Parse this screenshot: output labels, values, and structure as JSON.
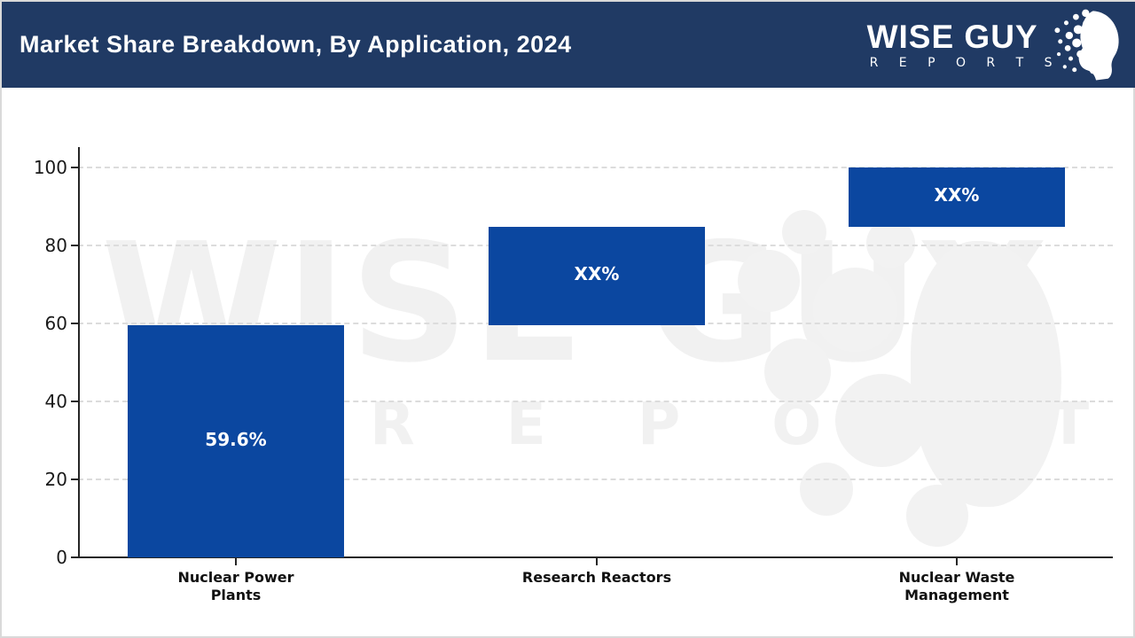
{
  "header": {
    "title": "Market Share Breakdown, By Application, 2024",
    "logo": {
      "line1": "WISE GUY",
      "line2": "R E P O R T S"
    }
  },
  "watermark": {
    "line1": "WISE GUY",
    "line2": "R E P O R T S"
  },
  "colors": {
    "header_bg": "#203a64",
    "bar": "#0b47a0",
    "bar_label": "#ffffff",
    "grid": "#dcdcdc",
    "axis": "#262626",
    "watermark": "#f1f1f1"
  },
  "chart_data": {
    "type": "bar",
    "subtype": "floating-waterfall",
    "title": "Market Share Breakdown, By Application, 2024",
    "categories": [
      "Nuclear Power Plants",
      "Research Reactors",
      "Nuclear Waste Management"
    ],
    "category_labels_wrapped": [
      "Nuclear Power\nPlants",
      "Research Reactors",
      "Nuclear Waste\nManagement"
    ],
    "segments": [
      {
        "category": "Nuclear Power Plants",
        "start": 0,
        "end": 59.6,
        "label": "59.6%"
      },
      {
        "category": "Research Reactors",
        "start": 59.6,
        "end": 84.8,
        "label": "XX%"
      },
      {
        "category": "Nuclear Waste Management",
        "start": 84.8,
        "end": 100,
        "label": "XX%"
      }
    ],
    "segment_sizes": [
      59.6,
      25.2,
      15.2
    ],
    "xlabel": "",
    "ylabel": "",
    "ylim": [
      0,
      100
    ],
    "yticks": [
      0,
      20,
      40,
      60,
      80,
      100
    ],
    "grid": "horizontal-dashed",
    "legend": "none",
    "bar_color": "#0b47a0",
    "bar_label_color": "#ffffff"
  }
}
